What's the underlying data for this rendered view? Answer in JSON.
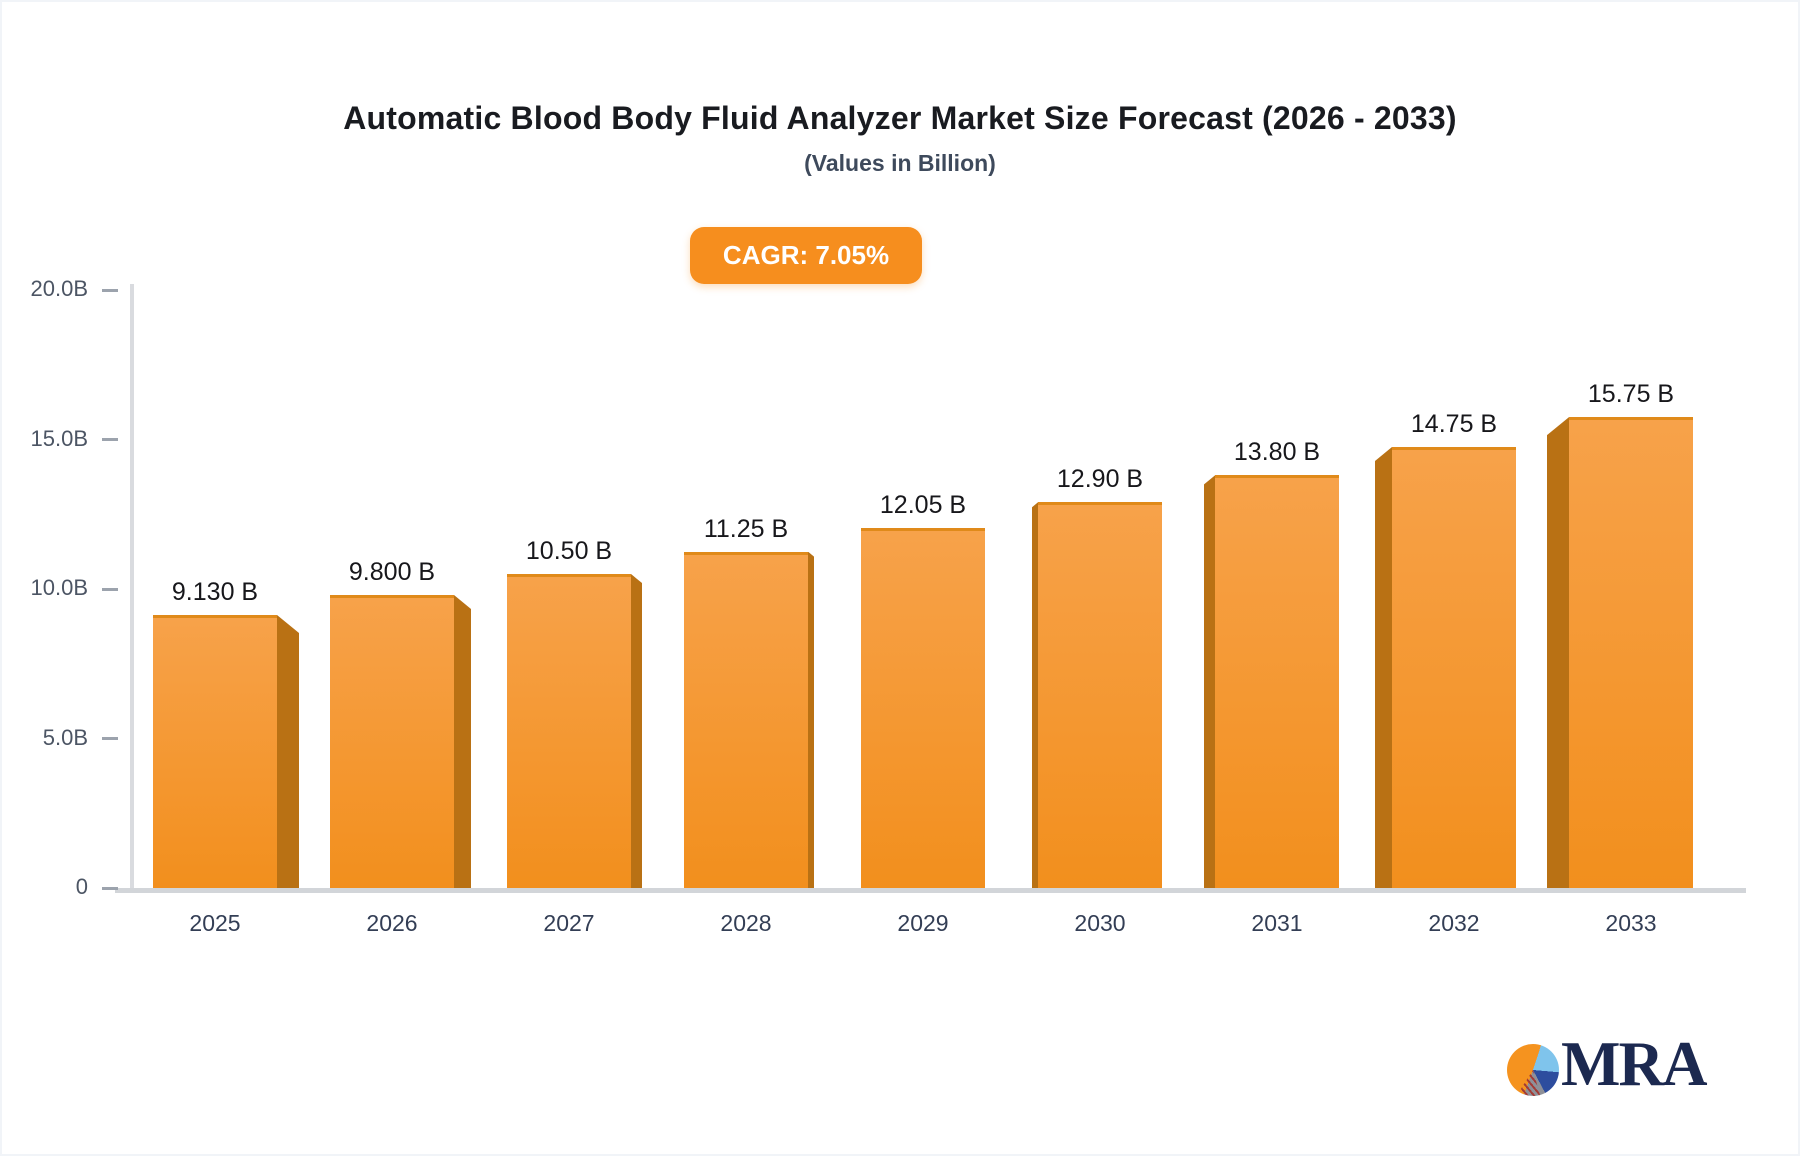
{
  "header": {
    "title": "Automatic Blood Body Fluid Analyzer Market Size Forecast (2026 - 2033)",
    "subtitle": "(Values in Billion)"
  },
  "badge": {
    "label": "CAGR: 7.05%",
    "bg_color": "#F68E1E",
    "text_color": "#FFFFFF"
  },
  "chart_data": {
    "type": "bar",
    "title": "Automatic Blood Body Fluid Analyzer Market Size Forecast (2026 - 2033)",
    "subtitle": "(Values in Billion)",
    "cagr": "7.05%",
    "categories": [
      "2025",
      "2026",
      "2027",
      "2028",
      "2029",
      "2030",
      "2031",
      "2032",
      "2033"
    ],
    "values": [
      9.13,
      9.8,
      10.5,
      11.25,
      12.05,
      12.9,
      13.8,
      14.75,
      15.75
    ],
    "value_labels": [
      "9.130 B",
      "9.800 B",
      "10.50 B",
      "11.25 B",
      "12.05 B",
      "12.90 B",
      "13.80 B",
      "14.75 B",
      "15.75 B"
    ],
    "ylim": [
      0,
      20
    ],
    "yticks": [
      {
        "label": "0",
        "value": 0
      },
      {
        "label": "5.0B",
        "value": 5
      },
      {
        "label": "10.0B",
        "value": 10
      },
      {
        "label": "15.0B",
        "value": 15
      },
      {
        "label": "20.0B",
        "value": 20
      }
    ],
    "grid": false,
    "legend": false,
    "bar_style_3d": true,
    "bar_colors": {
      "face_top": "#F7A24A",
      "face_bottom": "#F28F1D",
      "side": "#B97114",
      "top_edge": "#E08A1A"
    },
    "axis_color": "#d6d8dc",
    "tick_text_color": "#4c5564",
    "category_text_color": "#333e55"
  },
  "logo": {
    "text": "MRA",
    "pie_colors": {
      "orange": "#F5931F",
      "light_blue": "#7FC4EC",
      "dark_blue": "#2D4D9E",
      "gray": "#8E9098"
    }
  }
}
